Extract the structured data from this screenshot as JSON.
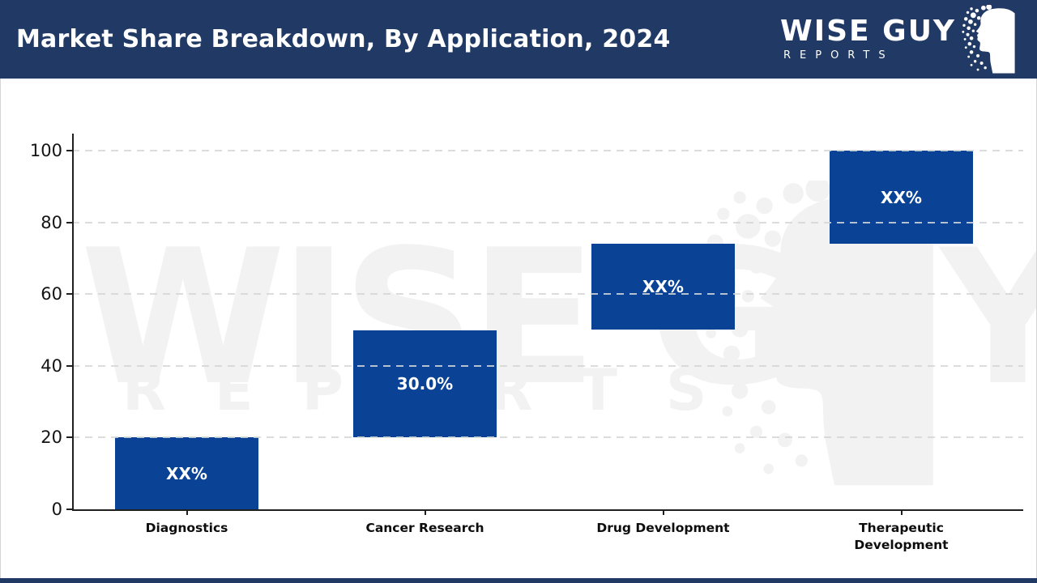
{
  "header": {
    "title": "Market Share Breakdown, By Application, 2024",
    "logo": {
      "line1": "WISE GUY",
      "line2": "REPORTS"
    }
  },
  "watermark": {
    "line1": "WISE GUY",
    "line2": "REPORTS"
  },
  "chart_data": {
    "type": "bar",
    "variant": "waterfall-stacked-percentage",
    "title": "Market Share Breakdown, By Application, 2024",
    "xlabel": "",
    "ylabel": "",
    "categories": [
      "Diagnostics",
      "Cancer Research",
      "Drug Development",
      "Therapeutic Development"
    ],
    "segments": [
      {
        "category": "Diagnostics",
        "start": 0,
        "end": 20,
        "label": "XX%"
      },
      {
        "category": "Cancer Research",
        "start": 20,
        "end": 50,
        "label": "30.0%"
      },
      {
        "category": "Drug Development",
        "start": 50,
        "end": 74,
        "label": "XX%"
      },
      {
        "category": "Therapeutic Development",
        "start": 74,
        "end": 100,
        "label": "XX%"
      }
    ],
    "y_ticks": [
      0,
      20,
      40,
      60,
      80,
      100
    ],
    "ylim": [
      0,
      105
    ],
    "grid": "horizontal-dashed",
    "legend": "none",
    "bar_color": "#0a4396",
    "label_color": "#ffffff"
  },
  "colors": {
    "header_bg": "#203a65",
    "footer_bg": "#203a65",
    "bar": "#0a4396",
    "watermark": "#f2f2f2",
    "axis": "#1f1f1f",
    "gridline": "#d6d6d6"
  }
}
